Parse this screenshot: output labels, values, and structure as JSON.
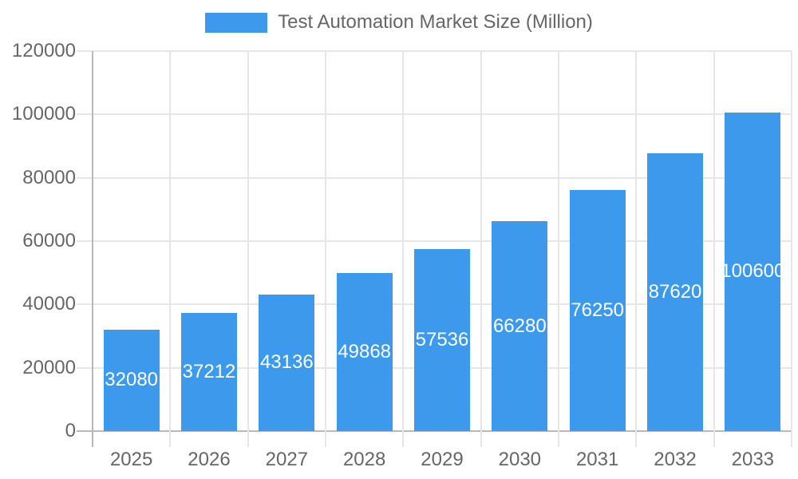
{
  "legend": {
    "position": "top",
    "label": "Test Automation Market Size (Million)"
  },
  "chart_data": {
    "type": "bar",
    "title": "Test Automation Market Size (Million)",
    "categories": [
      "2025",
      "2026",
      "2027",
      "2028",
      "2029",
      "2030",
      "2031",
      "2032",
      "2033"
    ],
    "values": [
      32080,
      37212,
      43136,
      49868,
      57536,
      66280,
      76250,
      87620,
      100600
    ],
    "series": [
      {
        "name": "Test Automation Market Size (Million)",
        "values": [
          32080,
          37212,
          43136,
          49868,
          57536,
          66280,
          76250,
          87620,
          100600
        ]
      }
    ],
    "data_labels_shown": true,
    "xlabel": "",
    "ylabel": "",
    "ylim": [
      0,
      120000
    ],
    "ytick_step": 20000,
    "ytick_labels": [
      "0",
      "20000",
      "40000",
      "60000",
      "80000",
      "100000",
      "120000"
    ],
    "grid": true,
    "legend_position": "top",
    "colors": {
      "bar": "#3C99EC",
      "grid": "#E6E6E6",
      "axis": "#B9B9B9",
      "tick_text": "#666666",
      "legend_text": "#666666",
      "value_label_text": "#FFFFFF",
      "background": "#FFFFFF"
    }
  }
}
